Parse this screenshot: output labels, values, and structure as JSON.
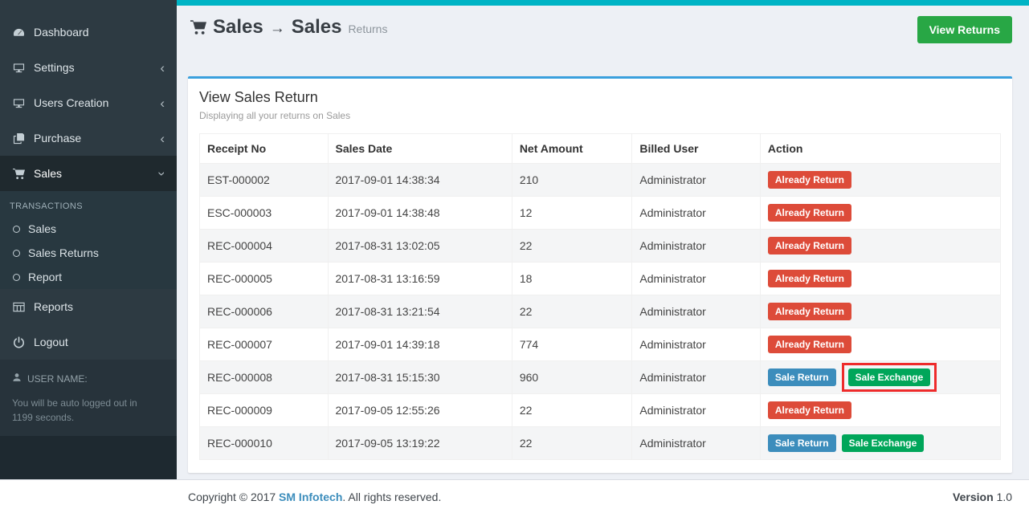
{
  "colors": {
    "teal_bar": "#00b4c5",
    "panel_accent": "#3aa0dd",
    "button_green": "#28a745",
    "badge_red": "#dd4b39",
    "badge_blue": "#3c8dbc",
    "badge_green": "#00a65a",
    "highlight_red": "#ee2b2b"
  },
  "icons": {
    "breadcrumb_arrow": "→",
    "chevron_left": "‹",
    "chevron_down": "›"
  },
  "sidebar": {
    "items": [
      {
        "label": "Dashboard"
      },
      {
        "label": "Settings"
      },
      {
        "label": "Users Creation"
      },
      {
        "label": "Purchase"
      },
      {
        "label": "Sales"
      }
    ],
    "transactions_header": "TRANSACTIONS",
    "submenu": [
      {
        "label": "Sales"
      },
      {
        "label": "Sales Returns"
      },
      {
        "label": "Report"
      }
    ],
    "reports_label": "Reports",
    "logout_label": "Logout",
    "user_label": "USER NAME:",
    "auto_logout_note": "You will be auto logged out in 1199 seconds."
  },
  "header": {
    "breadcrumb_root": "Sales",
    "breadcrumb_page": "Sales",
    "breadcrumb_sub": "Returns",
    "view_returns_button": "View Returns"
  },
  "panel": {
    "title": "View Sales Return",
    "subtitle": "Displaying all your returns on Sales"
  },
  "table": {
    "columns": [
      "Receipt No",
      "Sales Date",
      "Net Amount",
      "Billed User",
      "Action"
    ],
    "rows": [
      {
        "receipt_no": "EST-000002",
        "sales_date": "2017-09-01 14:38:34",
        "net_amount": "210",
        "billed_user": "Administrator",
        "actions": [
          {
            "label": "Already Return",
            "type": "danger"
          }
        ]
      },
      {
        "receipt_no": "ESC-000003",
        "sales_date": "2017-09-01 14:38:48",
        "net_amount": "12",
        "billed_user": "Administrator",
        "actions": [
          {
            "label": "Already Return",
            "type": "danger"
          }
        ]
      },
      {
        "receipt_no": "REC-000004",
        "sales_date": "2017-08-31 13:02:05",
        "net_amount": "22",
        "billed_user": "Administrator",
        "actions": [
          {
            "label": "Already Return",
            "type": "danger"
          }
        ]
      },
      {
        "receipt_no": "REC-000005",
        "sales_date": "2017-08-31 13:16:59",
        "net_amount": "18",
        "billed_user": "Administrator",
        "actions": [
          {
            "label": "Already Return",
            "type": "danger"
          }
        ]
      },
      {
        "receipt_no": "REC-000006",
        "sales_date": "2017-08-31 13:21:54",
        "net_amount": "22",
        "billed_user": "Administrator",
        "actions": [
          {
            "label": "Already Return",
            "type": "danger"
          }
        ]
      },
      {
        "receipt_no": "REC-000007",
        "sales_date": "2017-09-01 14:39:18",
        "net_amount": "774",
        "billed_user": "Administrator",
        "actions": [
          {
            "label": "Already Return",
            "type": "danger"
          }
        ]
      },
      {
        "receipt_no": "REC-000008",
        "sales_date": "2017-08-31 15:15:30",
        "net_amount": "960",
        "billed_user": "Administrator",
        "actions": [
          {
            "label": "Sale Return",
            "type": "primary"
          },
          {
            "label": "Sale Exchange",
            "type": "success",
            "highlighted": true
          }
        ]
      },
      {
        "receipt_no": "REC-000009",
        "sales_date": "2017-09-05 12:55:26",
        "net_amount": "22",
        "billed_user": "Administrator",
        "actions": [
          {
            "label": "Already Return",
            "type": "danger"
          }
        ]
      },
      {
        "receipt_no": "REC-000010",
        "sales_date": "2017-09-05 13:19:22",
        "net_amount": "22",
        "billed_user": "Administrator",
        "actions": [
          {
            "label": "Sale Return",
            "type": "primary"
          },
          {
            "label": "Sale Exchange",
            "type": "success"
          }
        ]
      }
    ]
  },
  "footer": {
    "copyright_prefix": "Copyright © 2017",
    "company": "SM Infotech",
    "copyright_suffix": ". All rights reserved.",
    "version_label": "Version",
    "version_value": "1.0"
  }
}
